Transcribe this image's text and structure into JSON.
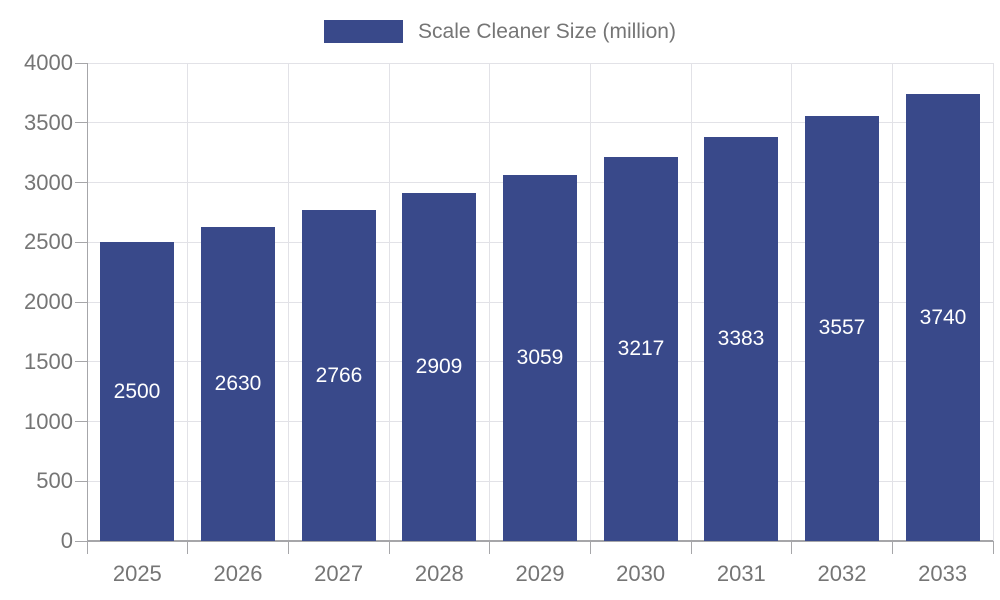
{
  "legend": {
    "label": "Scale Cleaner Size (million)"
  },
  "chart_data": {
    "type": "bar",
    "title": "Scale Cleaner Size (million)",
    "categories": [
      "2025",
      "2026",
      "2027",
      "2028",
      "2029",
      "2030",
      "2031",
      "2032",
      "2033"
    ],
    "series": [
      {
        "name": "Scale Cleaner Size (million)",
        "values": [
          2500,
          2630,
          2766,
          2909,
          3059,
          3217,
          3383,
          3557,
          3740
        ]
      }
    ],
    "xlabel": "",
    "ylabel": "",
    "ylim": [
      0,
      4000
    ],
    "ytick_step": 500,
    "grid": true,
    "legend_position": "top",
    "value_labels": "inside-center"
  },
  "colors": {
    "bar": "#39498A",
    "grid": "#e2e2e7",
    "axis": "#a6a6a9",
    "tick_text": "#757575",
    "value_label_text": "#ffffff",
    "background": "#ffffff"
  }
}
